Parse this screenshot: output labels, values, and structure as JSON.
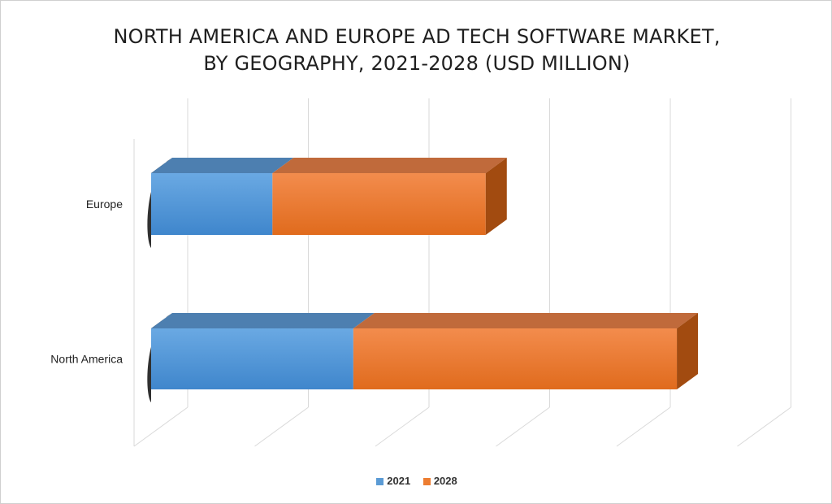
{
  "chart_data": {
    "type": "bar",
    "orientation": "horizontal",
    "style": "3d-stacked",
    "title_lines": [
      "NORTH AMERICA AND EUROPE AD TECH SOFTWARE MARKET,",
      "BY GEOGRAPHY, 2021-2028 (USD MILLION)"
    ],
    "categories": [
      "Europe",
      "North America"
    ],
    "series": [
      {
        "name": "2021",
        "values": [
          1650,
          2750
        ],
        "color": "#5b9bd5"
      },
      {
        "name": "2028",
        "values": [
          2900,
          4400
        ],
        "color": "#ed7d31"
      }
    ],
    "xlim": [
      0,
      8000
    ],
    "grid": true,
    "tick_labels_shown": false,
    "legend_position": "bottom"
  }
}
